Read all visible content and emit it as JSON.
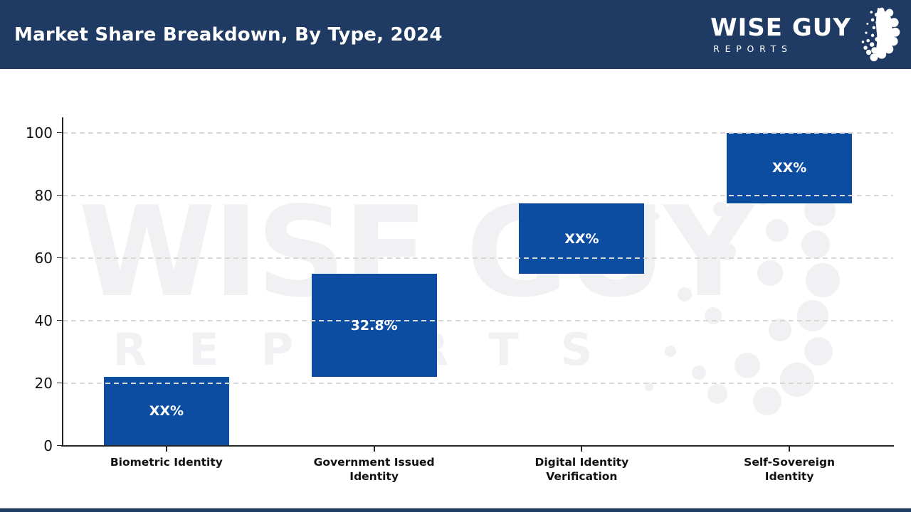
{
  "header": {
    "title": "Market Share Breakdown, By Type, 2024",
    "logo": {
      "line1": "WISE GUY",
      "line2": "REPORTS",
      "icon": "dot-face-profile-icon"
    }
  },
  "watermark": {
    "line1": "WISE GUY",
    "line2": "REPORTS",
    "icon": "dot-face-profile-watermark"
  },
  "colors": {
    "header_bg": "#1f3a63",
    "footer_bg": "#1f3a63",
    "bar": "#0c4da2",
    "bar_label": "#ffffff",
    "grid": "#d8d8d8",
    "axis": "#262626",
    "watermark": "#f1f1f4"
  },
  "chart_data": {
    "type": "bar",
    "subtype": "floating-waterfall",
    "title": "Market Share Breakdown, By Type, 2024",
    "xlabel": "",
    "ylabel": "",
    "categories": [
      "Biometric Identity",
      "Government Issued Identity",
      "Digital Identity Verification",
      "Self-Sovereign Identity"
    ],
    "category_label_lines": [
      [
        "Biometric Identity"
      ],
      [
        "Government Issued",
        "Identity"
      ],
      [
        "Digital Identity",
        "Verification"
      ],
      [
        "Self-Sovereign",
        "Identity"
      ]
    ],
    "segments": [
      {
        "category": "Biometric Identity",
        "start": 0,
        "end": 22,
        "height": 22,
        "label": "XX%"
      },
      {
        "category": "Government Issued Identity",
        "start": 22,
        "end": 54.8,
        "height": 32.8,
        "label": "32.8%"
      },
      {
        "category": "Digital Identity Verification",
        "start": 54.8,
        "end": 77.4,
        "height": 22.6,
        "label": "XX%"
      },
      {
        "category": "Self-Sovereign Identity",
        "start": 77.4,
        "end": 100,
        "height": 22.6,
        "label": "XX%"
      }
    ],
    "yticks": [
      0,
      20,
      40,
      60,
      80,
      100
    ],
    "ylim": [
      0,
      105
    ],
    "grid": {
      "horizontal": true,
      "style": "dashed",
      "drawn_above_bars": true
    },
    "legend": null
  }
}
